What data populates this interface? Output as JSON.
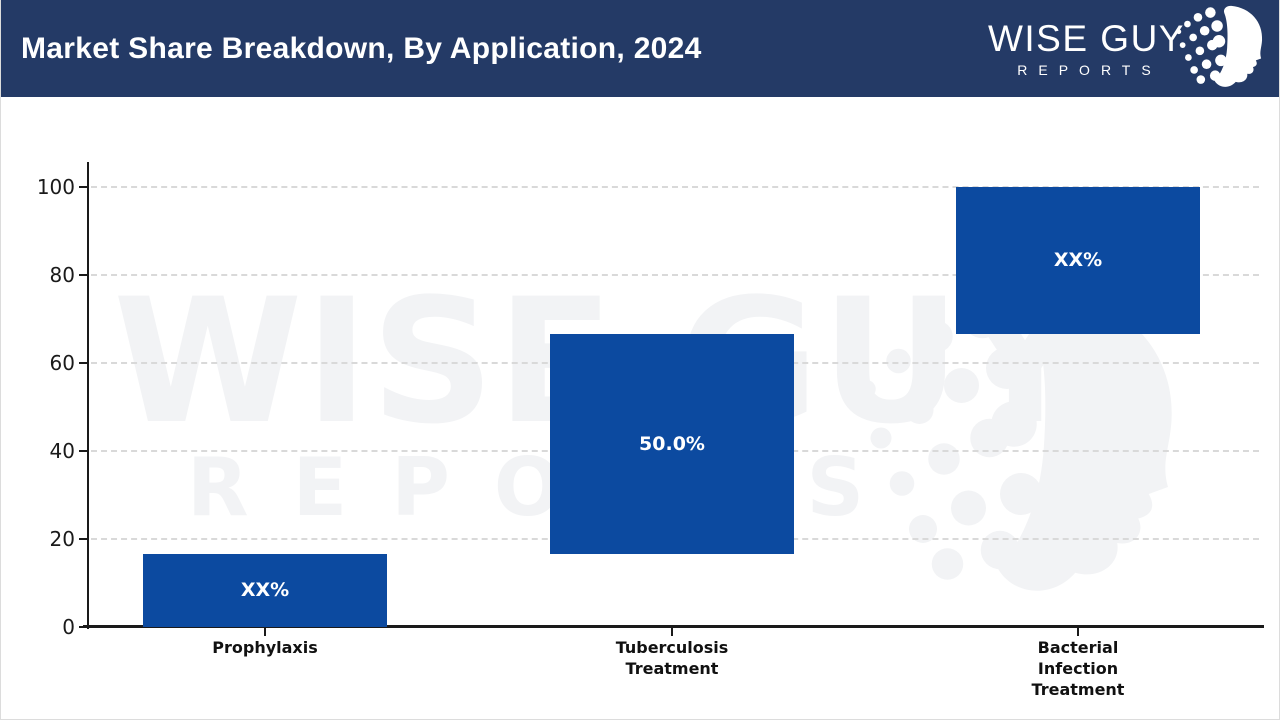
{
  "header": {
    "title": "Market Share Breakdown, By Application, 2024",
    "logo": {
      "name": "WISE GUY",
      "tagline": "REPORTS"
    }
  },
  "watermark": {
    "line1": "WISE GUY",
    "line2": "REPORTS"
  },
  "colors": {
    "header_bg": "#243a66",
    "title_text": "#ffffff",
    "bar": "#0c4aa0",
    "bar_label": "#ffffff",
    "axis": "#1a1a1a",
    "grid": "#d9d9d9",
    "watermark": "#f2f3f5"
  },
  "chart_data": {
    "type": "bar",
    "subtype": "floating-waterfall",
    "title": "Market Share Breakdown, By Application, 2024",
    "categories": [
      "Prophylaxis",
      "Tuberculosis\nTreatment",
      "Bacterial\nInfection\nTreatment"
    ],
    "bars": [
      {
        "category": "Prophylaxis",
        "start": 0,
        "end": 16.7,
        "label": "XX%"
      },
      {
        "category": "Tuberculosis Treatment",
        "start": 16.7,
        "end": 66.7,
        "label": "50.0%"
      },
      {
        "category": "Bacterial Infection Treatment",
        "start": 66.7,
        "end": 100,
        "label": "XX%"
      }
    ],
    "y_ticks": [
      0,
      20,
      40,
      60,
      80,
      100
    ],
    "ylim": [
      0,
      105
    ],
    "xlabel": "",
    "ylabel": "",
    "grid": "horizontal-dashed",
    "legend": "none"
  }
}
